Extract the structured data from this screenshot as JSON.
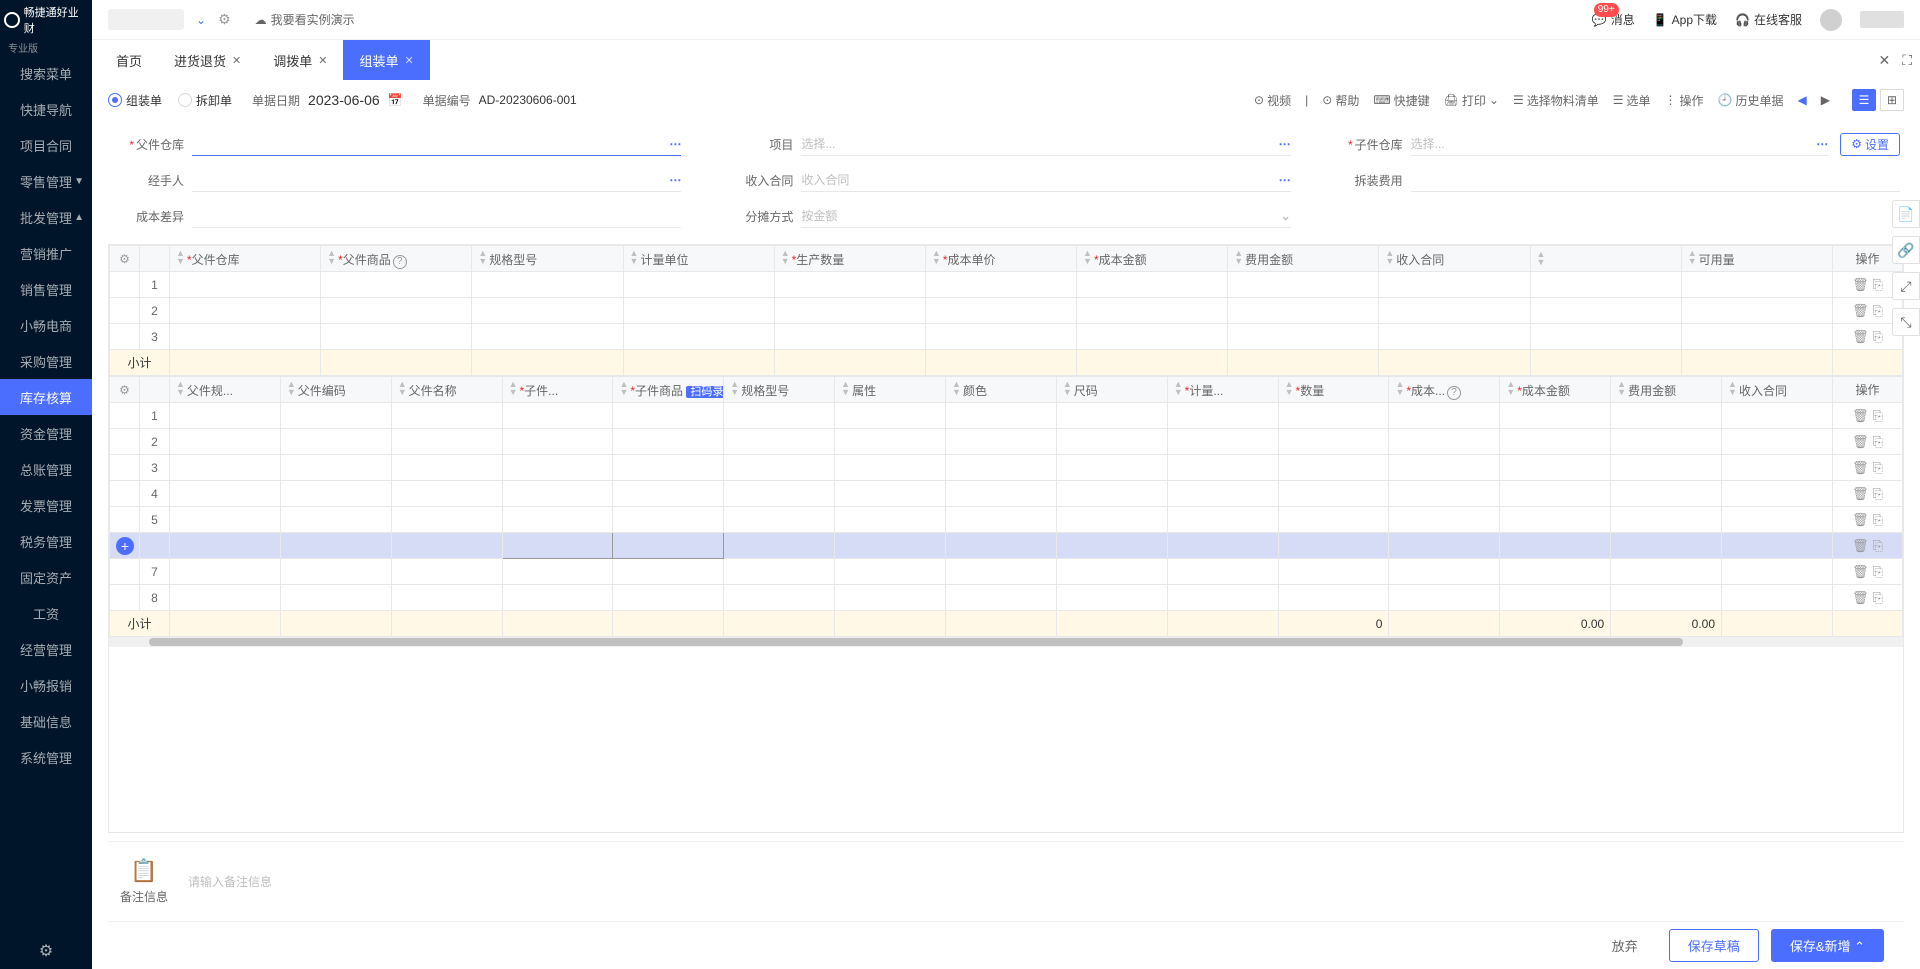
{
  "brand": {
    "name": "畅捷通好业财",
    "sub": "专业版"
  },
  "sidebar": {
    "items": [
      {
        "label": "搜索菜单"
      },
      {
        "label": "快捷导航"
      },
      {
        "label": "项目合同"
      },
      {
        "label": "零售管理",
        "caret": "▼"
      },
      {
        "label": "批发管理",
        "caret": "▲"
      },
      {
        "label": "营销推广"
      },
      {
        "label": "销售管理"
      },
      {
        "label": "小畅电商"
      },
      {
        "label": "采购管理"
      },
      {
        "label": "库存核算",
        "active": true
      },
      {
        "label": "资金管理"
      },
      {
        "label": "总账管理"
      },
      {
        "label": "发票管理"
      },
      {
        "label": "税务管理"
      },
      {
        "label": "固定资产"
      },
      {
        "label": "工资"
      },
      {
        "label": "经营管理"
      },
      {
        "label": "小畅报销"
      },
      {
        "label": "基础信息"
      },
      {
        "label": "系统管理"
      }
    ]
  },
  "topbar": {
    "demo": "我要看实例演示",
    "msg": "消息",
    "badge": "99+",
    "app": "App下载",
    "service": "在线客服"
  },
  "tabs": [
    {
      "label": "首页"
    },
    {
      "label": "进货退货",
      "close": true
    },
    {
      "label": "调拨单",
      "close": true
    },
    {
      "label": "组装单",
      "close": true,
      "active": true
    }
  ],
  "doc": {
    "radio1": "组装单",
    "radio2": "拆卸单",
    "dateLabel": "单据日期",
    "date": "2023-06-06",
    "noLabel": "单据编号",
    "no": "AD-20230606-001"
  },
  "toolbar": {
    "video": "视频",
    "help": "帮助",
    "shortcut": "快捷键",
    "print": "打印",
    "pick": "选择物料清单",
    "select": "选单",
    "ops": "操作",
    "history": "历史单据"
  },
  "form": {
    "parentWh": "父件仓库",
    "project": "项目",
    "childWh": "子件仓库",
    "selectHint": "选择...",
    "setting": "设置",
    "handler": "经手人",
    "contract": "收入合同",
    "contractHint": "收入合同",
    "fee": "拆装费用",
    "costDiff": "成本差异",
    "split": "分摊方式",
    "splitHint": "按金额"
  },
  "table1": {
    "cols": [
      "*父件仓库",
      "*父件商品",
      "规格型号",
      "计量单位",
      "*生产数量",
      "*成本单价",
      "*成本金额",
      "费用金额",
      "收入合同",
      "",
      "可用量",
      "操作"
    ],
    "subtotal": "小计"
  },
  "table2": {
    "cols": [
      "父件规...",
      "父件编码",
      "父件名称",
      "*子件...",
      "*子件商品",
      "规格型号",
      "属性",
      "颜色",
      "尺码",
      "*计量...",
      "*数量",
      "*成本...",
      "*成本金额",
      "费用金额",
      "收入合同",
      "操作"
    ],
    "scan": "扫码录入",
    "subtotal": "小计",
    "totals": {
      "qty": "0",
      "cost": "0.00",
      "fee": "0.00"
    }
  },
  "remark": {
    "title": "备注信息",
    "hint": "请输入备注信息"
  },
  "footer": {
    "discard": "放弃",
    "draft": "保存草稿",
    "saveNew": "保存&新增"
  }
}
